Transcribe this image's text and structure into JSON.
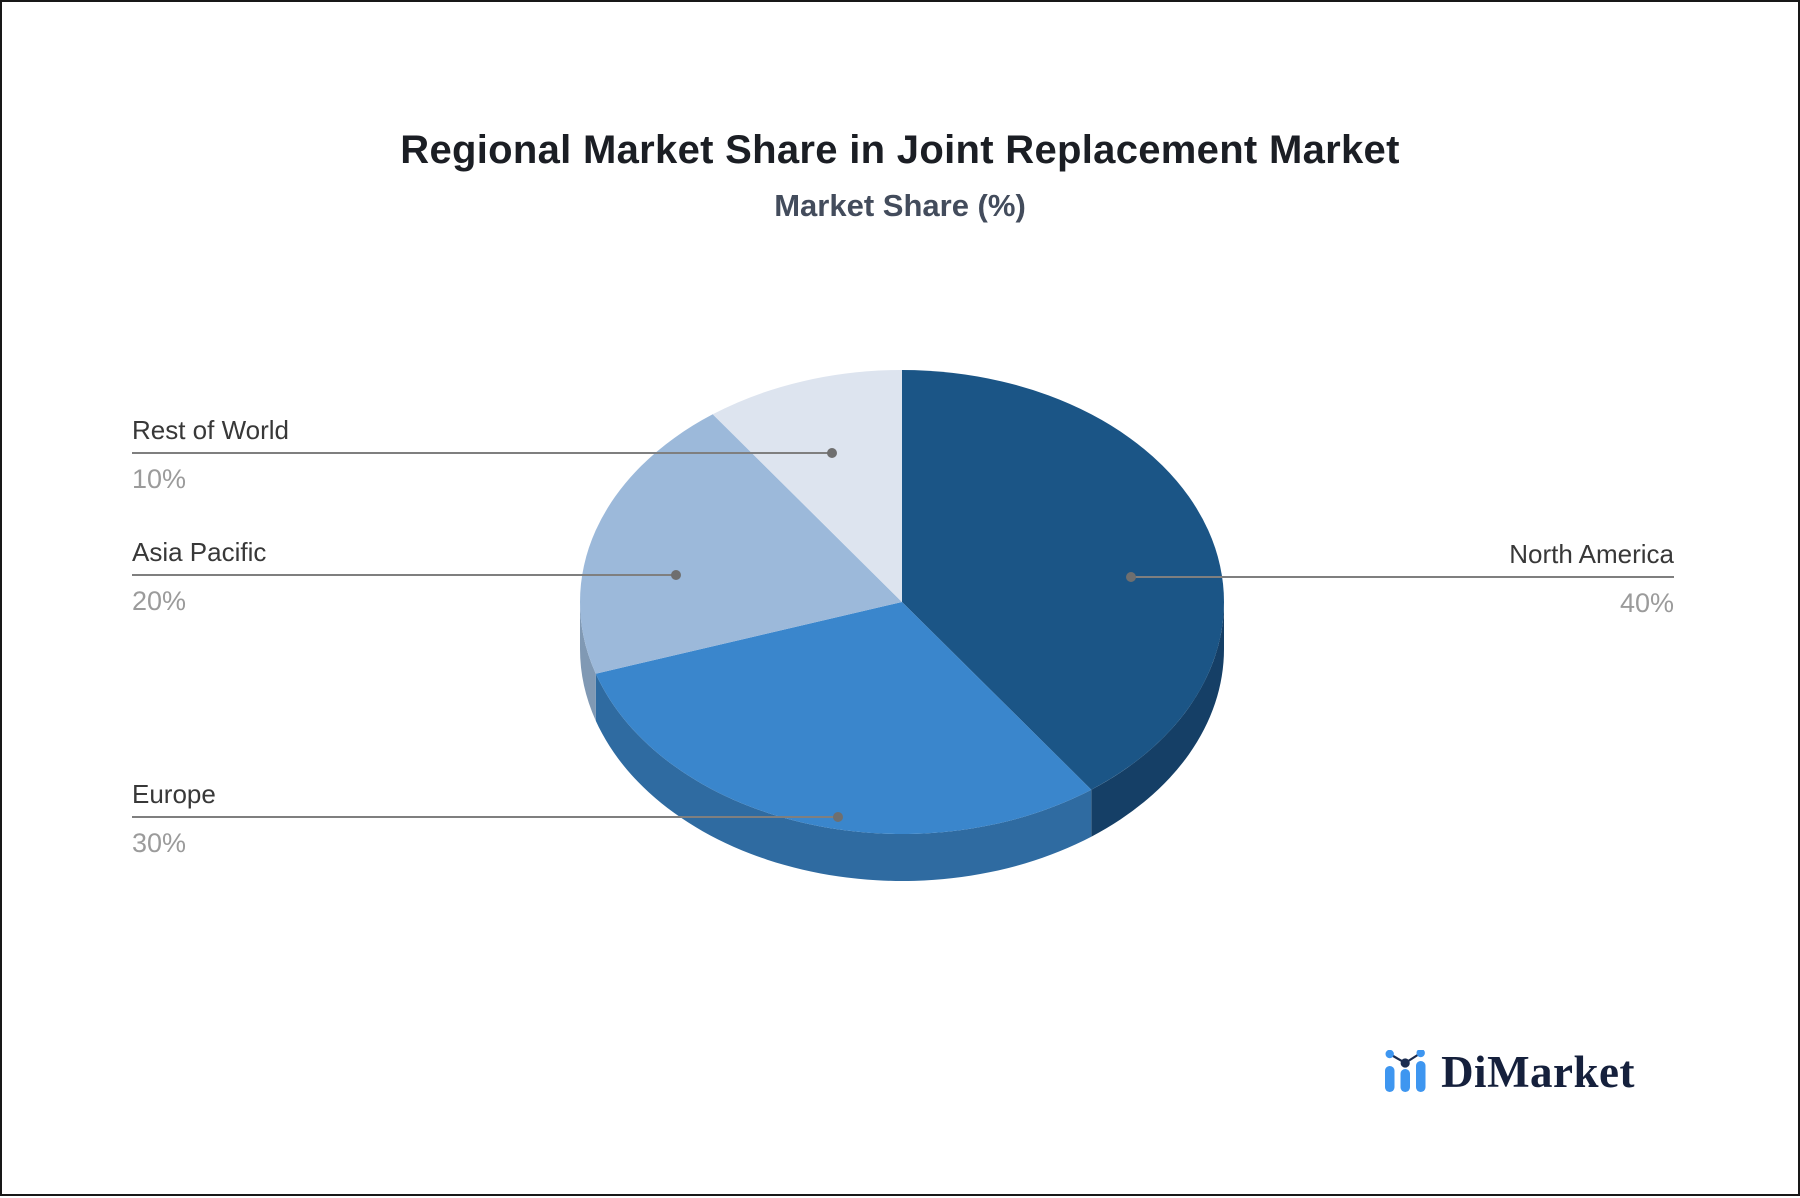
{
  "page": {
    "background": "#ffffff"
  },
  "chart_data": {
    "type": "pie",
    "title": "Regional Market Share in Joint Replacement Market",
    "subtitle": "Market Share (%)",
    "value_unit": "%",
    "render_3d": true,
    "start_angle_deg": 0,
    "direction": "clockwise",
    "slices": [
      {
        "label": "North America",
        "value": 40,
        "display_value": "40%",
        "color": "#1B5586",
        "side_color": "#153F66"
      },
      {
        "label": "Europe",
        "value": 30,
        "display_value": "30%",
        "color": "#3A86CC",
        "side_color": "#2F6BA1"
      },
      {
        "label": "Asia Pacific",
        "value": 20,
        "display_value": "20%",
        "color": "#9CB9DA",
        "side_color": "#8099B4"
      },
      {
        "label": "Rest of World",
        "value": 10,
        "display_value": "10%",
        "color": "#DDE4EF",
        "side_color": "#AEB9CA"
      }
    ],
    "label_text_color": "#383838",
    "value_text_color": "#9b9b9b",
    "leader_line_color": "#7f7f7f"
  },
  "branding": {
    "logo_text": "DiMarket",
    "logo_icon": "mini-bar-line-chart-icon",
    "logo_text_color": "#15203C",
    "logo_accent_color": "#3E96F0",
    "logo_dark_color": "#1B2C50"
  }
}
